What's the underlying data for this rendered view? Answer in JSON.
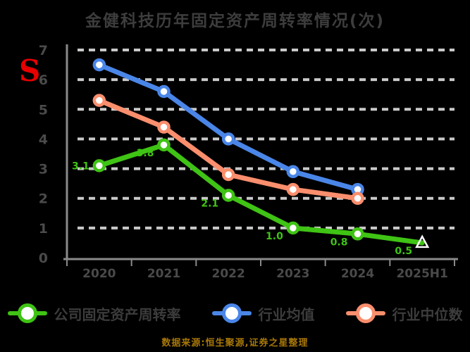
{
  "title": "金健科技历年固定资产周转率情况(次)",
  "watermark": "S",
  "footer": "数据来源:恒生聚源,证券之星整理",
  "colors": {
    "background": "#000000",
    "grid": "#c9c9c9",
    "axis": "#8a8a8a",
    "axis_text": "#4a4a4a",
    "title_text": "#3d3d3d",
    "footer_text": "#a77708",
    "watermark_red": "#e60000",
    "series_company_green": "#3fc314",
    "series_mean_blue": "#4a86e8",
    "series_median_orange": "#fa8e6d"
  },
  "chart_data": {
    "type": "line",
    "title": "金健科技历年固定资产周转率情况(次)",
    "categories": [
      "2020",
      "2021",
      "2022",
      "2023",
      "2024",
      "2025H1"
    ],
    "series": [
      {
        "name": "公司固定资产周转率",
        "color": "#3fc314",
        "values": [
          3.1,
          3.8,
          2.1,
          1.0,
          0.8,
          0.5
        ],
        "point_labels": [
          "3.1",
          "3.8",
          "2.1",
          "1.0",
          "0.8",
          "0.5"
        ],
        "end_marker": "triangle"
      },
      {
        "name": "行业均值",
        "color": "#4a86e8",
        "values": [
          6.5,
          5.6,
          4.0,
          2.9,
          2.3,
          null
        ],
        "point_labels": null,
        "end_marker": "circle"
      },
      {
        "name": "行业中位数",
        "color": "#fa8e6d",
        "values": [
          5.3,
          4.4,
          2.8,
          2.3,
          2.0,
          null
        ],
        "point_labels": null,
        "end_marker": "circle"
      }
    ],
    "xlabel": "",
    "ylabel": "",
    "ylim": [
      0,
      7
    ],
    "yticks": [
      0,
      1,
      2,
      3,
      4,
      5,
      6,
      7
    ],
    "grid": "horizontal-dashed",
    "legend_position": "bottom"
  }
}
